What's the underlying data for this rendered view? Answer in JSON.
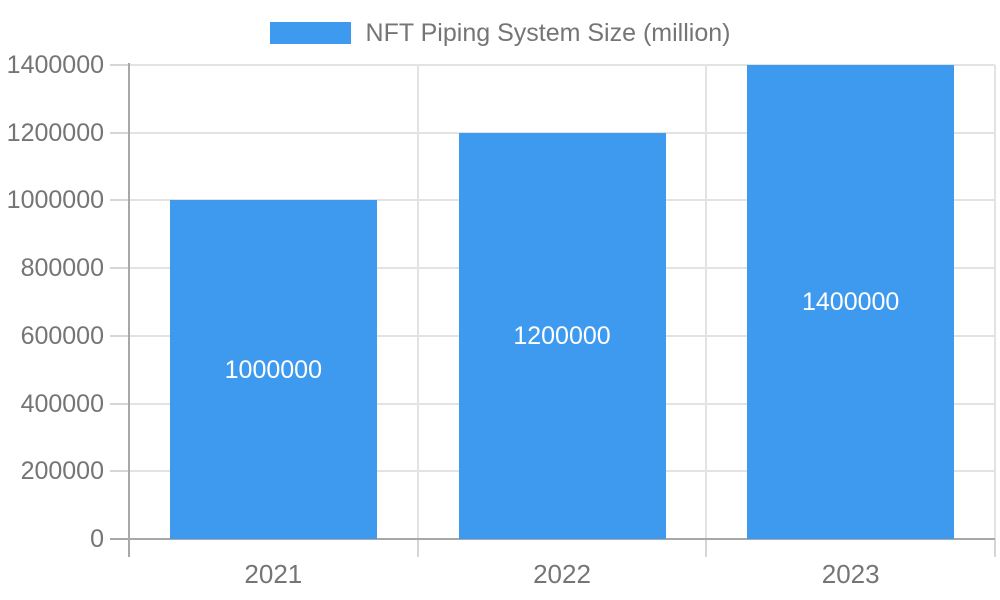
{
  "legend": {
    "label": "NFT Piping System Size (million)"
  },
  "chart_data": {
    "type": "bar",
    "title": "NFT Piping System Size (million)",
    "categories": [
      "2021",
      "2022",
      "2023"
    ],
    "series": [
      {
        "name": "NFT Piping System Size (million)",
        "values": [
          1000000,
          1200000,
          1400000
        ]
      }
    ],
    "bar_labels": [
      "1000000",
      "1200000",
      "1400000"
    ],
    "xlabel": "",
    "ylabel": "",
    "ylim": [
      0,
      1400000
    ],
    "ytick_step": 200000,
    "ytick_labels": [
      "0",
      "200000",
      "400000",
      "600000",
      "800000",
      "1000000",
      "1200000",
      "1400000"
    ],
    "grid": true,
    "legend_position": "top-center",
    "colors": {
      "bar": "#3E9AEF",
      "bar_label": "#FFFFFF",
      "axis_text": "#757575",
      "legend_text": "#757575",
      "gridline": "#E3E3E3",
      "tick": "#D6D6D6",
      "axis_line": "#A8A8A8",
      "background": "#FFFFFF"
    }
  }
}
